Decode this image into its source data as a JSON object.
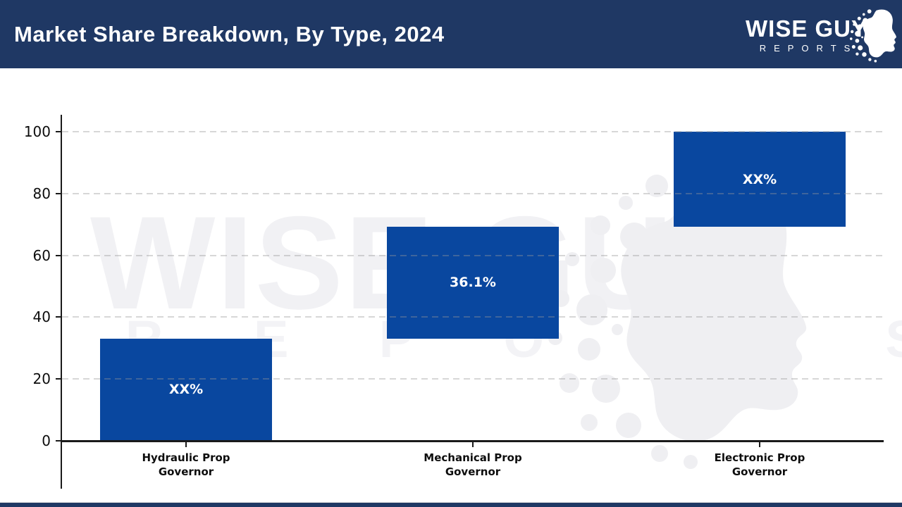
{
  "header": {
    "title": "Market Share Breakdown, By Type, 2024",
    "bg_color": "#1f3864",
    "logo": {
      "line1": "WISE GUY",
      "line2": "REPORTS"
    }
  },
  "watermark": {
    "line1": "WISE GUY",
    "line2": "R E P O R T S"
  },
  "chart_data": {
    "type": "bar",
    "subtype": "waterfall",
    "title": "Market Share Breakdown, By Type, 2024",
    "categories": [
      [
        "Hydraulic Prop",
        "Governor"
      ],
      [
        "Mechanical Prop",
        "Governor"
      ],
      [
        "Electronic Prop",
        "Governor"
      ]
    ],
    "series": [
      {
        "name": "Market Share",
        "segments": [
          {
            "start": 0,
            "end": 33.1,
            "label": "XX%"
          },
          {
            "start": 33.1,
            "end": 69.2,
            "label": "36.1%"
          },
          {
            "start": 69.2,
            "end": 100,
            "label": "XX%"
          }
        ]
      }
    ],
    "xlabel": "",
    "ylabel": "",
    "ylim": [
      0,
      100
    ],
    "yticks": [
      0,
      20,
      40,
      60,
      80,
      100
    ],
    "grid": "horizontal-dashed-over-bars",
    "legend": "none",
    "bar_color": "#09479f",
    "bar_label_color": "#ffffff",
    "gridline_color": "#e0e0e0"
  },
  "footer": {
    "bg_color": "#1f3864"
  }
}
